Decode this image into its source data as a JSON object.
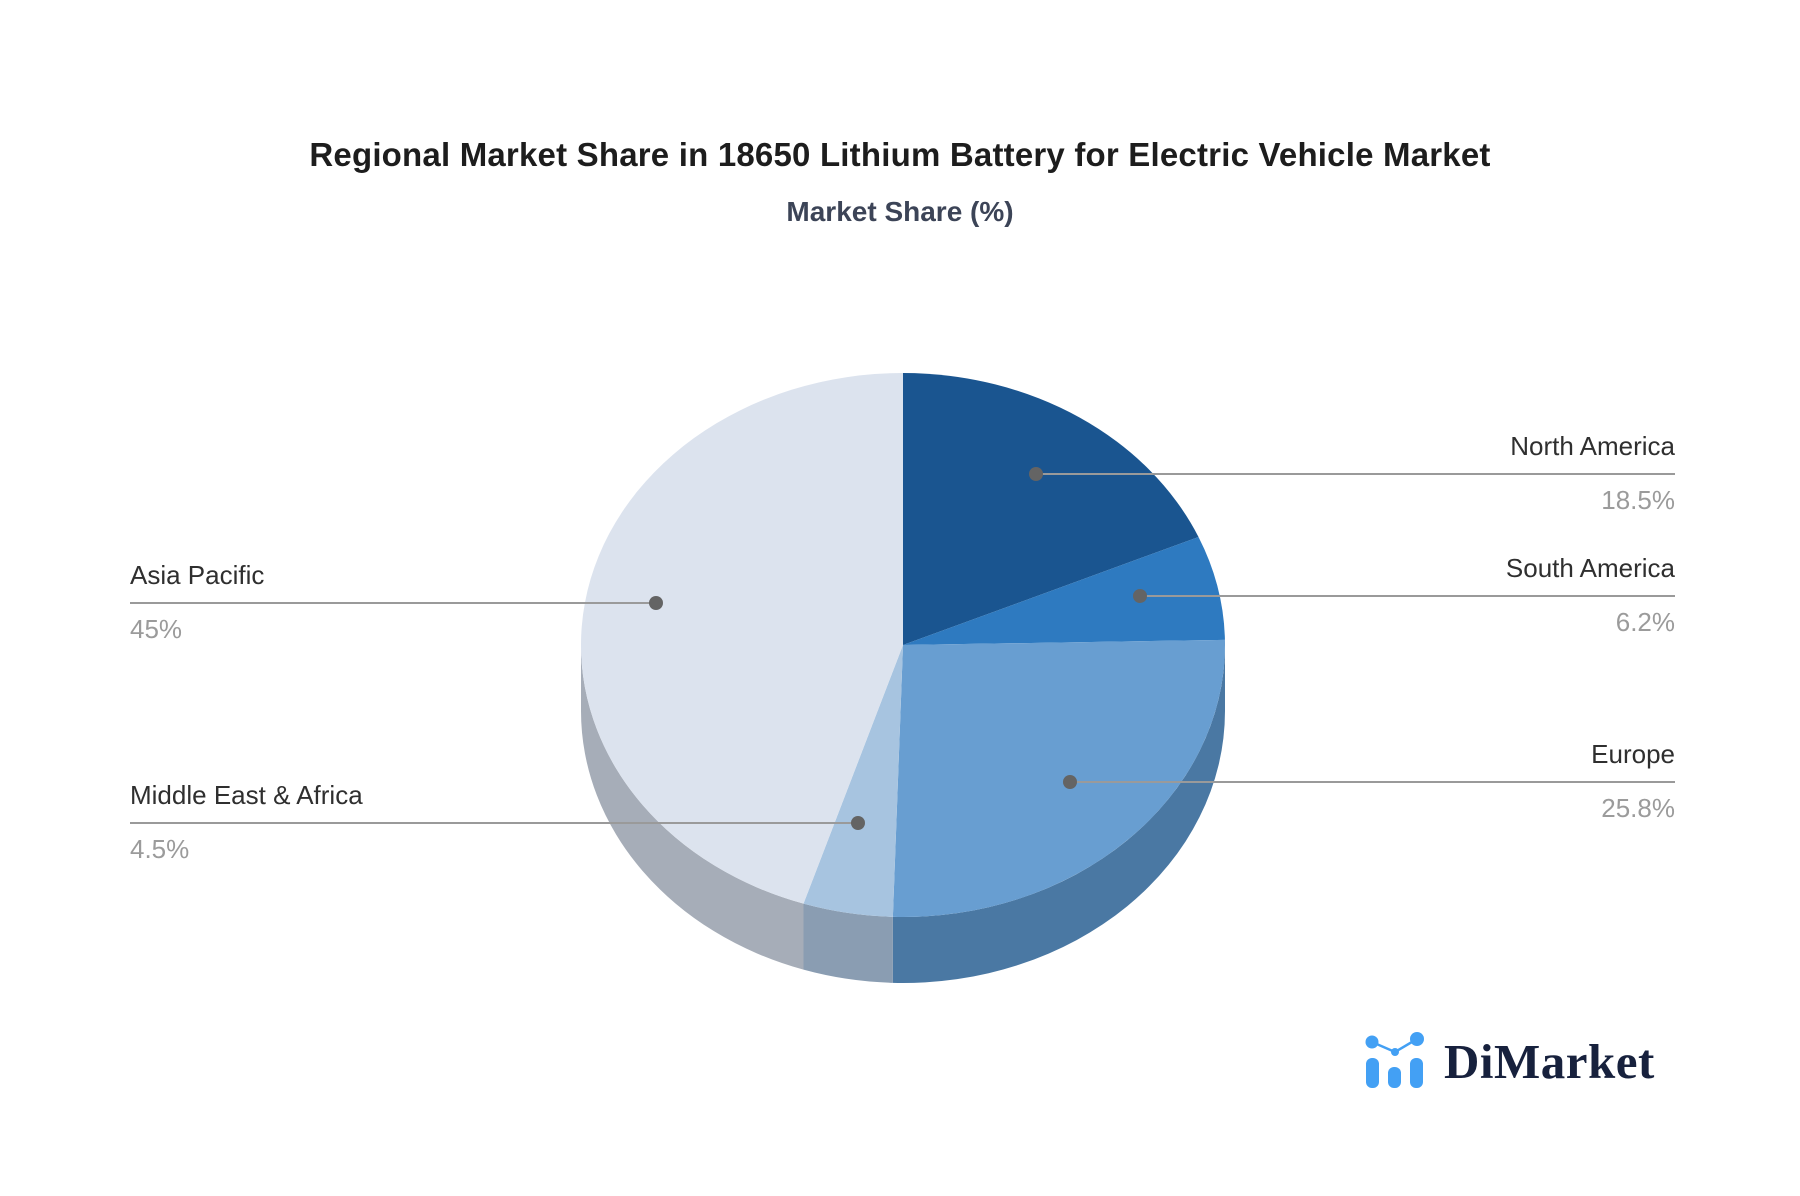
{
  "header": {
    "title": "Regional Market Share in 18650 Lithium Battery for Electric Vehicle Market",
    "subtitle": "Market Share (%)"
  },
  "chart_data": {
    "type": "pie",
    "title": "Market Share (%)",
    "unit": "%",
    "style": "3d-pie",
    "start_angle_deg": 0,
    "direction": "clockwise",
    "legend_position": "none",
    "labels_position": "callout-lines",
    "slices": [
      {
        "label": "North America",
        "value": 18.5,
        "display": "18.5%",
        "color": "#1A5590",
        "side_color": "#14477A",
        "label_side": "right"
      },
      {
        "label": "South America",
        "value": 6.2,
        "display": "6.2%",
        "color": "#2E7AC0",
        "side_color": "#25629B",
        "label_side": "right"
      },
      {
        "label": "Europe",
        "value": 25.8,
        "display": "25.8%",
        "color": "#689ED1",
        "side_color": "#4A78A3",
        "label_side": "right"
      },
      {
        "label": "Middle East & Africa",
        "value": 4.5,
        "display": "4.5%",
        "color": "#A7C4E0",
        "side_color": "#8A9DB2",
        "label_side": "left"
      },
      {
        "label": "Asia Pacific",
        "value": 45,
        "display": "45%",
        "color": "#DCE3EE",
        "side_color": "#A6ADB8",
        "label_side": "left"
      }
    ],
    "colors": {
      "label_name": "#2F2F2F",
      "label_value": "#9B9B9B",
      "leader_line": "#9A9A9A",
      "leader_dot": "#646464"
    }
  },
  "logo": {
    "name": "DiMarket",
    "icon": "bar-chart-icon",
    "bar_color": "#43A0F4",
    "text_color": "#17213D"
  }
}
